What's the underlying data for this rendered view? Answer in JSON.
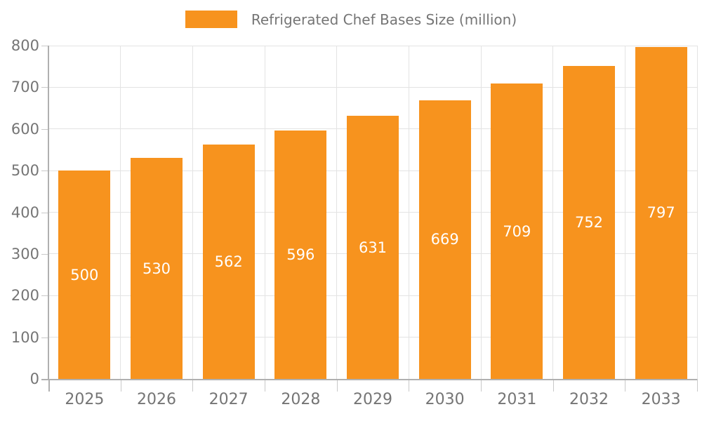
{
  "chart_data": {
    "type": "bar",
    "title": "",
    "legend": "Refrigerated Chef Bases Size (million)",
    "legend_position": "top-center",
    "categories": [
      "2025",
      "2026",
      "2027",
      "2028",
      "2029",
      "2030",
      "2031",
      "2032",
      "2033"
    ],
    "values": [
      500,
      530,
      562,
      596,
      631,
      669,
      709,
      752,
      797
    ],
    "series": [
      {
        "name": "Refrigerated Chef Bases Size (million)",
        "values": [
          500,
          530,
          562,
          596,
          631,
          669,
          709,
          752,
          797
        ]
      }
    ],
    "xlabel": "",
    "ylabel": "",
    "ylim": [
      0,
      800
    ],
    "ytick_step": 100,
    "yticks": [
      0,
      100,
      200,
      300,
      400,
      500,
      600,
      700,
      800
    ],
    "grid": true,
    "value_labels": "inside-center"
  },
  "colors": {
    "bar": "#F7931E",
    "axis_text": "#757575",
    "grid_line": "#E3E3E3",
    "axis_line": "#B0B0B0",
    "tick": "#C9C9C9",
    "value_label": "#FFFFFF",
    "background": "#FFFFFF"
  }
}
